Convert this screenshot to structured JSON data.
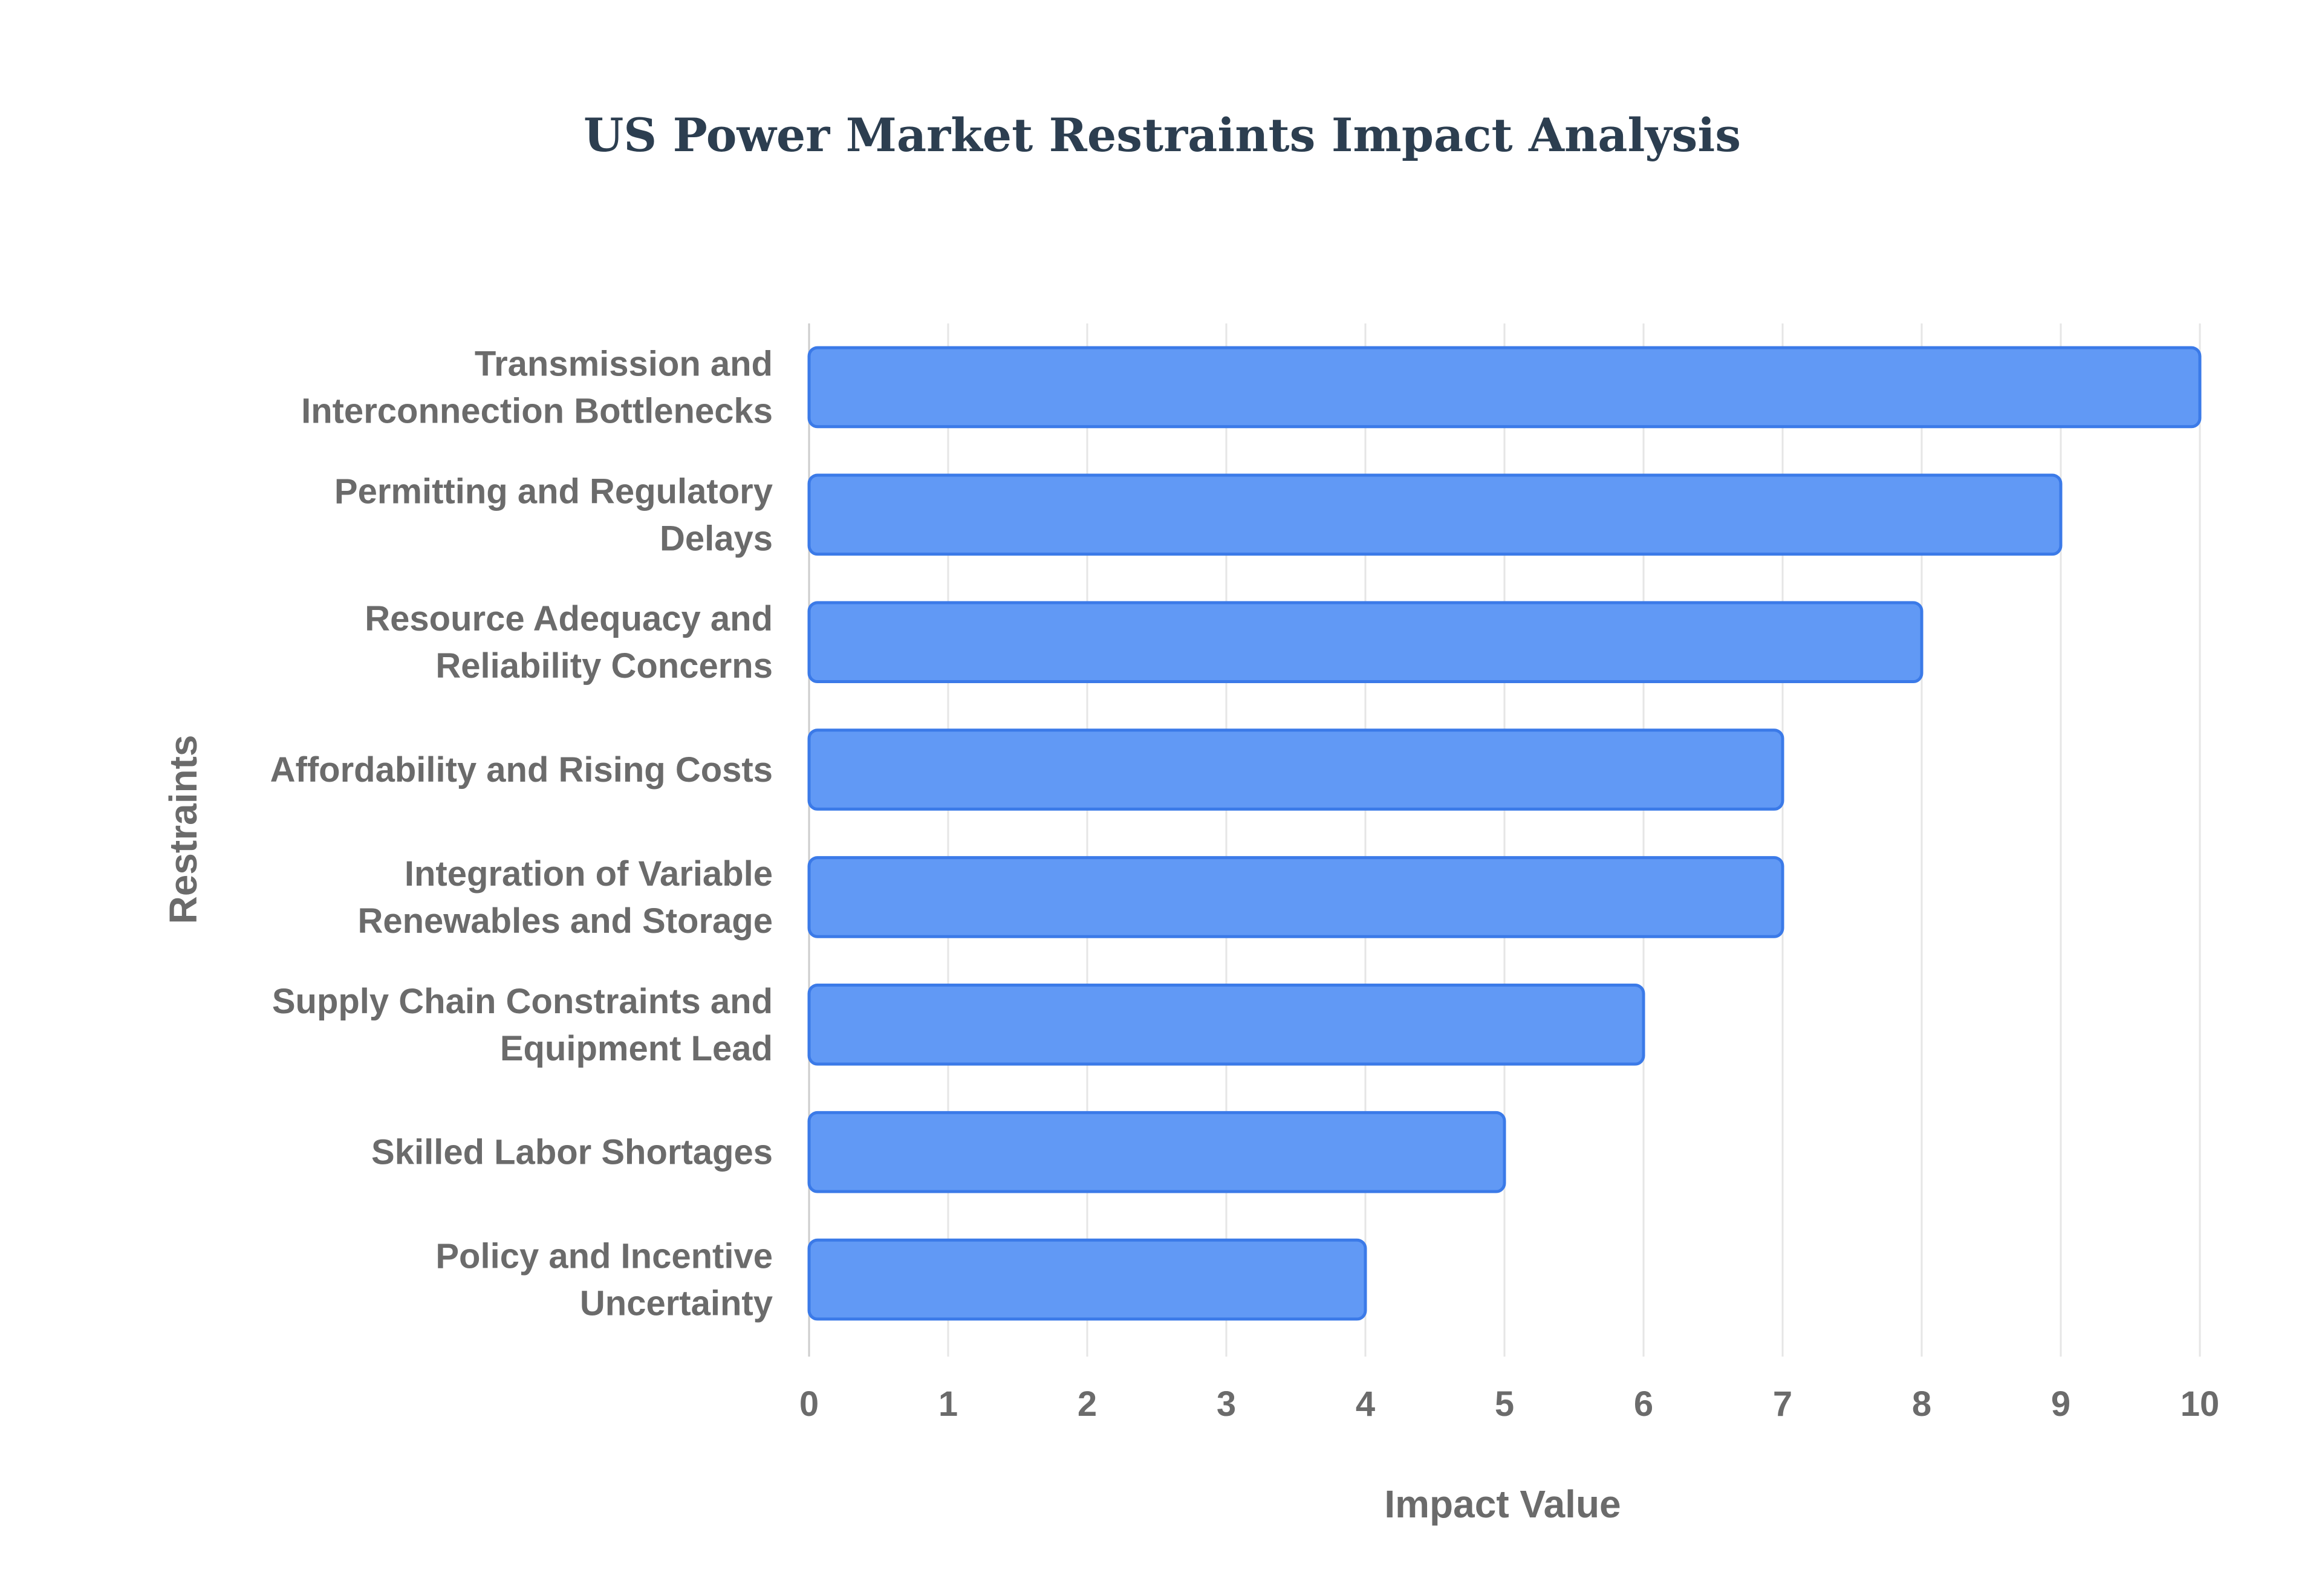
{
  "chart_data": {
    "type": "bar",
    "orientation": "horizontal",
    "title": "US Power Market Restraints Impact Analysis",
    "xlabel": "Impact Value",
    "ylabel": "Restraints",
    "xlim": [
      0,
      10
    ],
    "xticks": [
      0,
      1,
      2,
      3,
      4,
      5,
      6,
      7,
      8,
      9,
      10
    ],
    "grid": true,
    "categories": [
      [
        "Transmission and",
        "Interconnection Bottlenecks"
      ],
      [
        "Permitting and Regulatory",
        "Delays"
      ],
      [
        "Resource Adequacy and",
        "Reliability Concerns"
      ],
      [
        "Affordability and Rising Costs"
      ],
      [
        "Integration of Variable",
        "Renewables and Storage"
      ],
      [
        "Supply Chain Constraints and",
        "Equipment Lead"
      ],
      [
        "Skilled Labor Shortages"
      ],
      [
        "Policy and Incentive",
        "Uncertainty"
      ]
    ],
    "values": [
      10,
      9,
      8,
      7,
      7,
      6,
      5,
      4
    ],
    "colors": {
      "bar_fill": "#6199f5",
      "bar_stroke": "#3b7ae8",
      "grid": "#e6e6e6",
      "text": "#6b6b6b",
      "title": "#2c3e50"
    }
  }
}
